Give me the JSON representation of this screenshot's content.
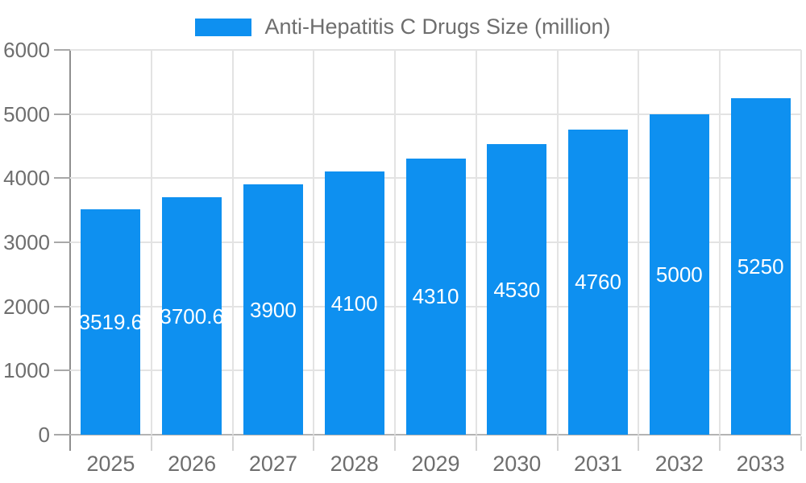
{
  "chart_data": {
    "type": "bar",
    "title": "Anti-Hepatitis C Drugs Size (million)",
    "legend": {
      "position": "top-center",
      "label": "Anti-Hepatitis C Drugs Size (million)"
    },
    "categories": [
      "2025",
      "2026",
      "2027",
      "2028",
      "2029",
      "2030",
      "2031",
      "2032",
      "2033"
    ],
    "series": [
      {
        "name": "Anti-Hepatitis C Drugs Size (million)",
        "values": [
          3519.6,
          3700.6,
          3900,
          4100,
          4310,
          4530,
          4760,
          5000,
          5250
        ]
      }
    ],
    "value_labels": [
      "3519.6",
      "3700.6",
      "3900",
      "4100",
      "4310",
      "4530",
      "4760",
      "5000",
      "5250"
    ],
    "value_label_position": "center-of-bar",
    "xlabel": "",
    "ylabel": "",
    "ylim": [
      0,
      6000
    ],
    "yticks": [
      0,
      1000,
      2000,
      3000,
      4000,
      5000,
      6000
    ],
    "grid": true,
    "colors": {
      "bar": "#0e90f0",
      "value_label_text": "#ffffff",
      "axis_text": "#6e6e6e",
      "grid_line": "#e3e3e3",
      "y_axis_line": "#8f8f8f",
      "x_axis_line": "#b3b3b3",
      "background": "#ffffff"
    }
  }
}
